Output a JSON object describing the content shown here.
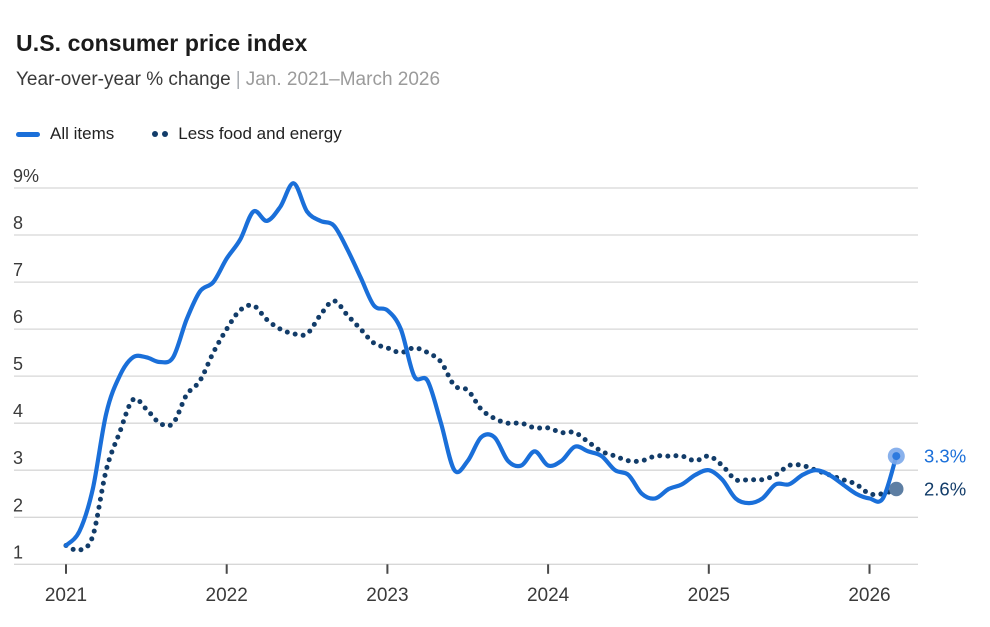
{
  "header": {
    "title": "U.S. consumer price index",
    "subtitle_measure": "Year-over-year % change",
    "subtitle_separator": "|",
    "subtitle_range": "Jan. 2021–March 2026"
  },
  "legend": {
    "all_items": "All items",
    "core": "Less food and energy"
  },
  "chart_data": {
    "type": "line",
    "title": "U.S. consumer price index",
    "subtitle": "Year-over-year % change | Jan. 2021–March 2026",
    "x_start": "2021-01",
    "x_end": "2026-03",
    "x_tick_labels": [
      "2021",
      "2022",
      "2023",
      "2024",
      "2025",
      "2026"
    ],
    "y_tick_labels": [
      "9%",
      "8",
      "7",
      "6",
      "5",
      "4",
      "3",
      "2",
      "1"
    ],
    "y_tick_values": [
      9,
      8,
      7,
      6,
      5,
      4,
      3,
      2,
      1
    ],
    "ylim": [
      1,
      9.4
    ],
    "grid": "horizontal",
    "legend_position": "top-left",
    "xlabel": "",
    "ylabel": "Year-over-year % change",
    "series": [
      {
        "name": "All items",
        "style": "solid",
        "color": "#1a6fd9",
        "end_label": "3.3%",
        "values": [
          1.4,
          1.7,
          2.6,
          4.2,
          5.0,
          5.4,
          5.4,
          5.3,
          5.4,
          6.2,
          6.8,
          7.0,
          7.5,
          7.9,
          8.5,
          8.3,
          8.6,
          9.1,
          8.5,
          8.3,
          8.2,
          7.7,
          7.1,
          6.5,
          6.4,
          6.0,
          5.0,
          4.9,
          4.0,
          3.0,
          3.2,
          3.7,
          3.7,
          3.2,
          3.1,
          3.4,
          3.1,
          3.2,
          3.5,
          3.4,
          3.3,
          3.0,
          2.9,
          2.5,
          2.4,
          2.6,
          2.7,
          2.9,
          3.0,
          2.8,
          2.4,
          2.3,
          2.4,
          2.7,
          2.7,
          2.9,
          3.0,
          2.9,
          2.7,
          2.5,
          2.4,
          2.4,
          3.3
        ]
      },
      {
        "name": "Less food and energy",
        "style": "dotted",
        "color": "#123c69",
        "end_label": "2.6%",
        "values": [
          1.4,
          1.3,
          1.6,
          3.0,
          3.8,
          4.5,
          4.3,
          4.0,
          4.0,
          4.6,
          4.9,
          5.5,
          6.0,
          6.4,
          6.5,
          6.2,
          6.0,
          5.9,
          5.9,
          6.3,
          6.6,
          6.3,
          6.0,
          5.7,
          5.6,
          5.5,
          5.6,
          5.5,
          5.3,
          4.8,
          4.7,
          4.3,
          4.1,
          4.0,
          4.0,
          3.9,
          3.9,
          3.8,
          3.8,
          3.6,
          3.4,
          3.3,
          3.2,
          3.2,
          3.3,
          3.3,
          3.3,
          3.2,
          3.3,
          3.1,
          2.8,
          2.8,
          2.8,
          2.9,
          3.1,
          3.1,
          3.0,
          2.9,
          2.8,
          2.7,
          2.5,
          2.5,
          2.6
        ]
      }
    ],
    "colors": {
      "grid": "#d7d7d7",
      "axis_text": "#3a3a3a",
      "tick": "#4a4a4a",
      "end_marker_halo": "#7ca8ea",
      "end_marker_center": "#2e7ade",
      "core_end_dot": "#5d7ea3"
    }
  }
}
